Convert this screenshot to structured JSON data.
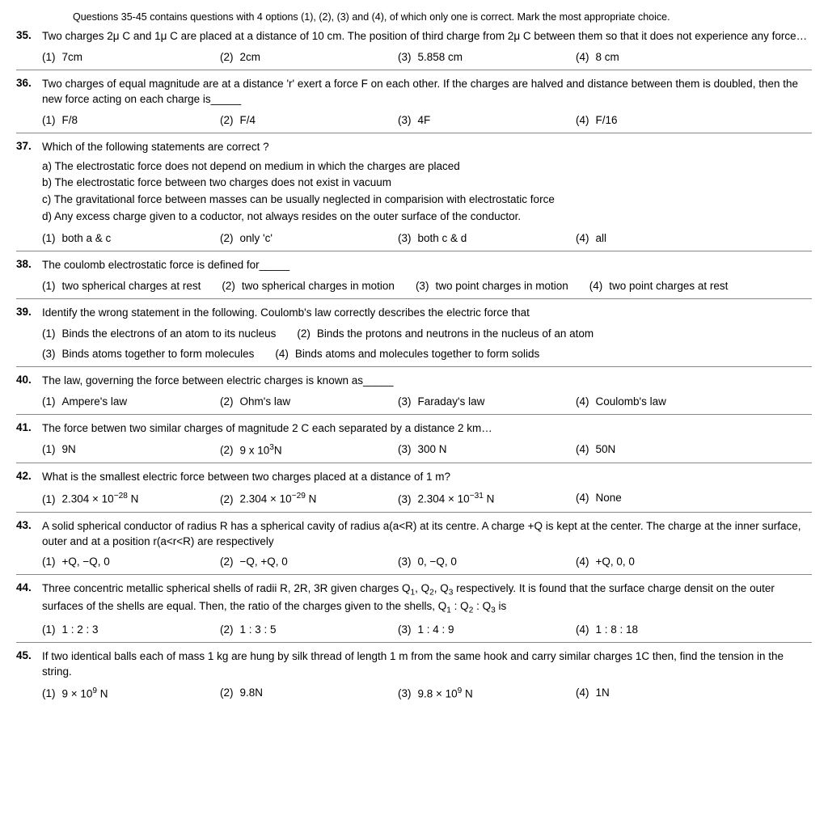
{
  "header_note": "Questions 35-45 contains questions with 4 options (1), (2), (3) and (4), of which only one is correct. Mark the most appropriate choice.",
  "questions": [
    {
      "num": "35.",
      "text": "Two charges 2μ C and 1μ C are placed at a distance of 10 cm. The position of third charge from 2μ C between them so that it does not experience any force…",
      "opts": [
        "7cm",
        "2cm",
        "5.858 cm",
        "8 cm"
      ]
    },
    {
      "num": "36.",
      "text": "Two charges of equal magnitude are at a distance 'r' exert a force F on each other. If the charges are halved and distance between them is doubled, then the new force acting on each charge is_____",
      "opts": [
        "F/8",
        "F/4",
        "4F",
        "F/16"
      ]
    },
    {
      "num": "37.",
      "text": "Which of the following statements are correct ?",
      "stmts": [
        "a) The electrostatic force does not depend on medium in which the charges are placed",
        "b) The electrostatic force between two charges does not exist in vacuum",
        "c) The gravitational force between masses can be usually neglected in comparision with electrostatic force",
        "d) Any excess charge given to a coductor, not always resides on the outer surface of the conductor."
      ],
      "opts": [
        "both a & c",
        "only 'c'",
        "both c & d",
        "all"
      ]
    },
    {
      "num": "38.",
      "text": "The coulomb electrostatic force is defined for_____",
      "opts_layout": "inline",
      "opts": [
        "two spherical charges at rest",
        "two spherical charges in motion",
        "two point charges in motion",
        "two point charges at rest"
      ]
    },
    {
      "num": "39.",
      "text": "Identify the wrong statement in the following. Coulomb's law correctly describes the electric force that",
      "opts_layout": "inline",
      "opts": [
        "Binds the electrons of an atom to its nucleus",
        "Binds the protons and neutrons in the nucleus of an atom",
        "Binds atoms together to form molecules",
        "Binds atoms and molecules together to form solids"
      ]
    },
    {
      "num": "40.",
      "text": "The law, governing the force between electric charges is known as_____",
      "opts": [
        "Ampere's law",
        "Ohm's law",
        "Faraday's law",
        "Coulomb's law"
      ]
    },
    {
      "num": "41.",
      "text": "The force betwen two similar charges of magnitude 2 C each separated by a distance 2 km…",
      "opts_html": [
        "9N",
        "9 x 10<sup>3</sup>N",
        "300 N",
        "50N"
      ]
    },
    {
      "num": "42.",
      "text": "What is the smallest electric force between two charges placed at a distance of 1 m?",
      "opts_html": [
        "2.304 × 10<sup>−28</sup> N",
        "2.304 × 10<sup>−29</sup> N",
        "2.304 × 10<sup>−31</sup> N",
        "None"
      ]
    },
    {
      "num": "43.",
      "text": "A solid spherical conductor of radius R has a spherical cavity of radius a(a<R) at its centre. A charge +Q is kept at the center. The charge at the inner surface, outer and at a position r(a<r<R) are respectively",
      "opts": [
        "+Q, −Q, 0",
        "−Q, +Q, 0",
        "0, −Q, 0",
        "+Q, 0, 0"
      ]
    },
    {
      "num": "44.",
      "text_html": "Three concentric metallic spherical shells of radii R, 2R, 3R given charges Q<sub>1</sub>, Q<sub>2</sub>, Q<sub>3</sub> respectively. It is found that the surface charge densit on the outer surfaces of the shells are equal. Then, the ratio of the charges given to the shells, Q<sub>1</sub> : Q<sub>2</sub> : Q<sub>3</sub> is",
      "opts": [
        "1 : 2 : 3",
        "1 : 3 : 5",
        "1 : 4 : 9",
        "1 : 8 : 18"
      ]
    },
    {
      "num": "45.",
      "text": "If two identical balls each of mass 1 kg are hung by silk thread of length 1 m from the same hook and carry similar charges 1C then, find the tension in the string.",
      "opts_html": [
        "9 × 10<sup>9</sup> N",
        "9.8N",
        "9.8 × 10<sup>9</sup> N",
        "1N"
      ]
    }
  ],
  "opt_labels": [
    "(1)",
    "(2)",
    "(3)",
    "(4)"
  ]
}
